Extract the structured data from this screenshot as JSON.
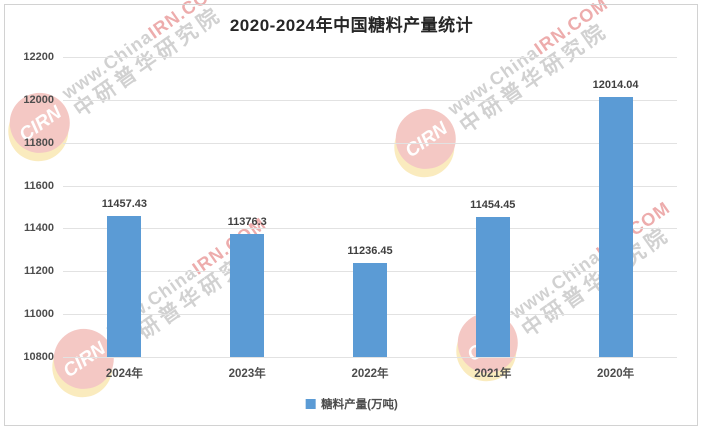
{
  "title": "2020-2024年中国糖料产量统计",
  "legend": {
    "label": "糖料产量(万吨)",
    "marker_color": "#5B9BD5"
  },
  "chart_data": {
    "type": "bar",
    "title": "2020-2024年中国糖料产量统计",
    "categories": [
      "2024年",
      "2023年",
      "2022年",
      "2021年",
      "2020年"
    ],
    "values": [
      11457.43,
      11376.3,
      11236.45,
      11454.45,
      12014.04
    ],
    "data_labels": [
      "11457.43",
      "11376.3",
      "11236.45",
      "11454.45",
      "12014.04"
    ],
    "series_name": "糖料产量(万吨)",
    "xlabel": "",
    "ylabel": "",
    "ylim": [
      10800,
      12200
    ],
    "ytick_step": 200,
    "yticks": [
      12200,
      12000,
      11800,
      11600,
      11400,
      11200,
      11000,
      10800
    ],
    "bar_color": "#5B9BD5",
    "grid": true,
    "legend_position": "bottom"
  },
  "watermark": {
    "site_gray": "www.China",
    "site_red": "IRN.COM",
    "company": "中研普华研究院",
    "logo_text": "CIRN"
  }
}
